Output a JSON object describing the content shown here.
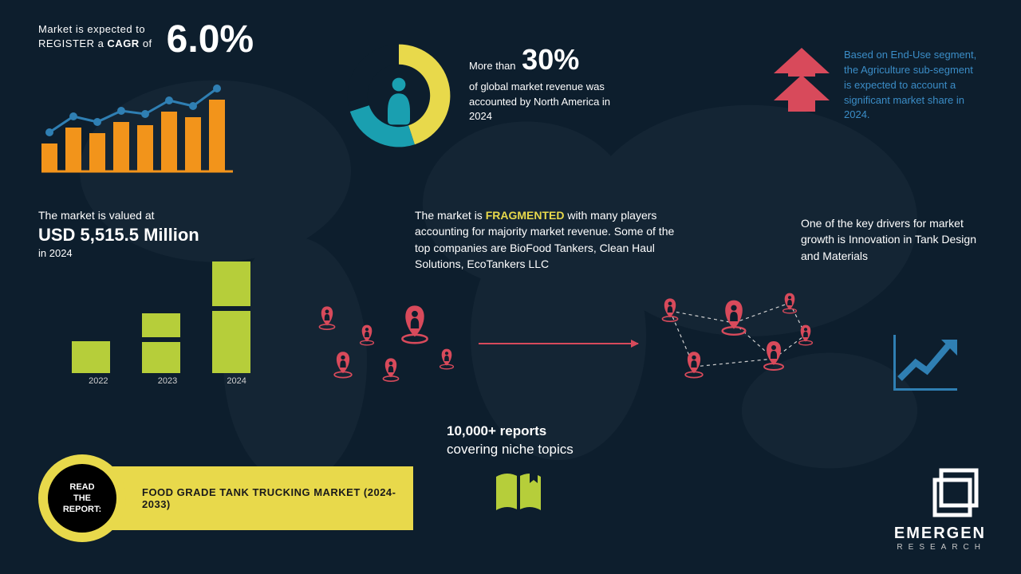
{
  "colors": {
    "bg": "#0d1e2d",
    "orange": "#f2941b",
    "blue": "#2f7fb3",
    "cyan": "#1a9fb0",
    "yellow": "#e8d94b",
    "green": "#b6ce3a",
    "red": "#d84a5b",
    "accentBlueText": "#3b8dc7",
    "white": "#ffffff",
    "grey": "#c8c8c8"
  },
  "cagr": {
    "line1": "Market is expected to",
    "line2": "REGISTER a CAGR of",
    "pct": "6.0%",
    "chart": {
      "type": "bar+line",
      "bars": [
        35,
        55,
        48,
        62,
        58,
        75,
        68,
        90
      ],
      "bar_color": "#f2941b",
      "line_color": "#2f7fb3",
      "marker_color": "#2f7fb3",
      "baseline_color": "#f2941b"
    }
  },
  "donut": {
    "prefix": "More than",
    "pct": "30%",
    "body": "of global market revenue was accounted by North America in 2024",
    "segments": [
      {
        "color": "#e8d94b",
        "fraction": 0.45
      },
      {
        "color": "#1a9fb0",
        "fraction": 0.25
      },
      {
        "color": "#0d1e2d",
        "fraction": 0.3
      }
    ],
    "center_icon_color": "#1a9fb0"
  },
  "topright": {
    "arrow_color": "#d84a5b",
    "text": "Based on End-Use segment, the Agriculture sub-segment is expected to account a significant market share in 2024."
  },
  "valuation": {
    "lead": "The market is valued at",
    "big": "USD 5,515.5 Million",
    "year": "in 2024",
    "bars": {
      "type": "bar",
      "years": [
        "2022",
        "2023",
        "2024"
      ],
      "values": [
        40,
        75,
        140
      ],
      "gap_marks": [
        false,
        true,
        true
      ],
      "color": "#b6ce3a"
    }
  },
  "fragmented": {
    "pre": "The market is ",
    "highlight": "FRAGMENTED",
    "post": " with many players accounting for majority market revenue. Some of the top companies are BioFood Tankers, Clean Haul Solutions, EcoTankers LLC",
    "pin_color": "#d84a5b"
  },
  "driver": {
    "text": "One of the key drivers for market growth is Innovation in Tank Design and Materials",
    "icon_color": "#2f7fb3"
  },
  "reports": {
    "line1": "10,000+ reports",
    "line2": "covering niche topics",
    "book_color": "#b6ce3a"
  },
  "readpill": {
    "ring_lines": "READ THE REPORT:",
    "title": "FOOD GRADE TANK TRUCKING MARKET (2024-2033)"
  },
  "logo": {
    "brand": "EMERGEN",
    "sub": "RESEARCH"
  }
}
